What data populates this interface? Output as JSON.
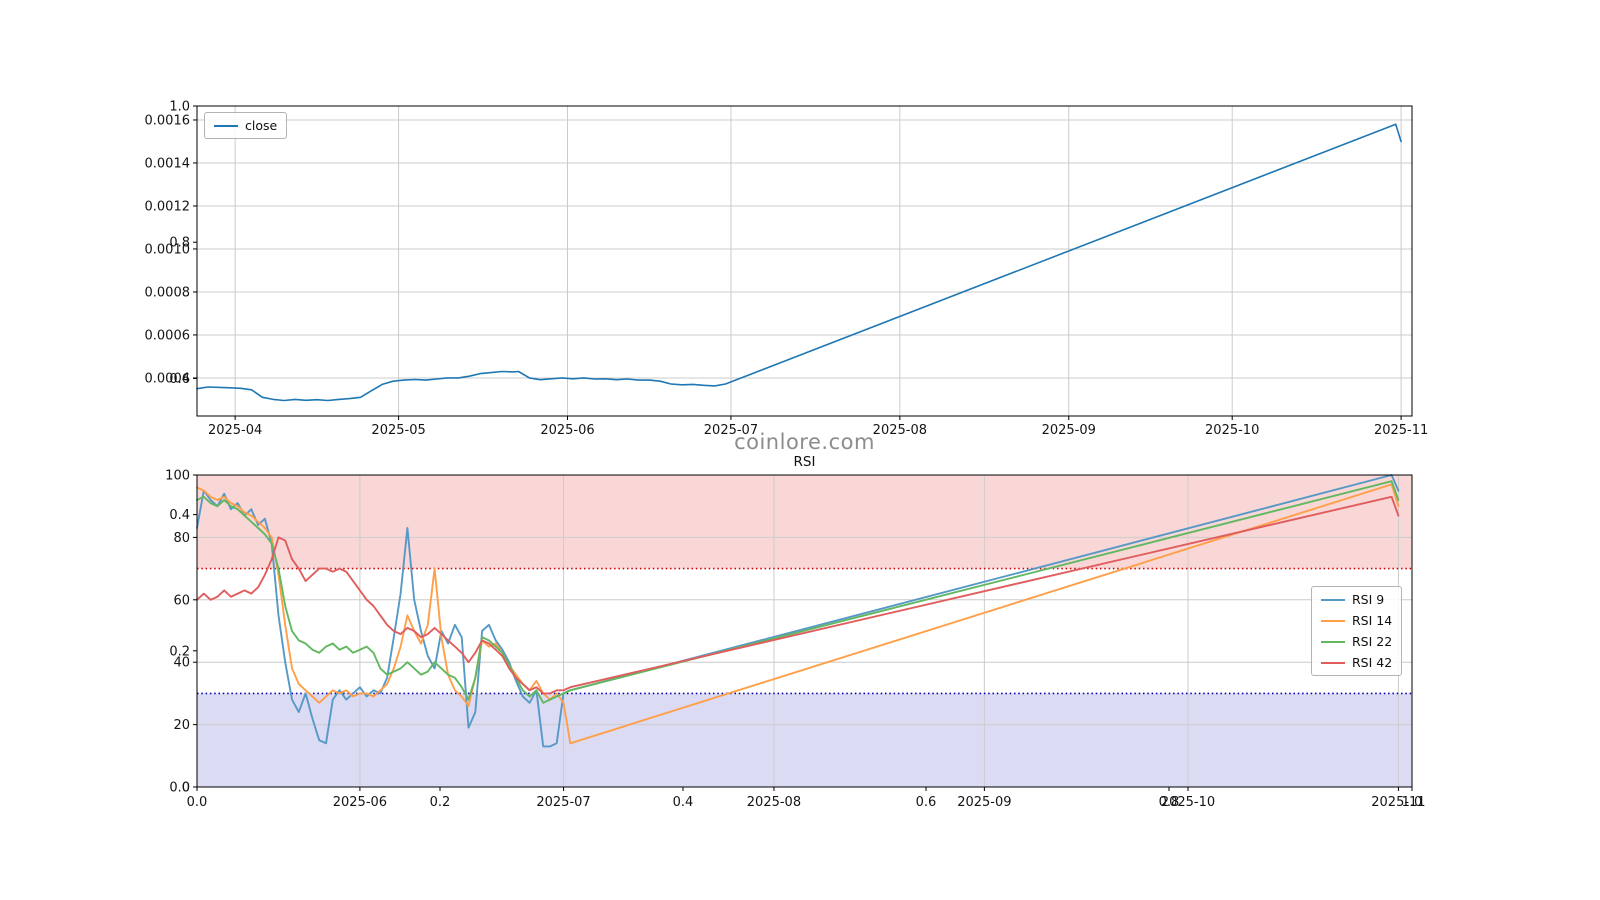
{
  "watermark": "coinlore.com",
  "phantom_axis": {
    "x_ticks": [
      "0.0",
      "0.2",
      "0.4",
      "0.6",
      "0.8",
      "1.0"
    ],
    "y_ticks": [
      "0.0",
      "0.2",
      "0.4",
      "0.6",
      "0.8",
      "1.0"
    ]
  },
  "chart_data": [
    {
      "type": "line",
      "name": "price-chart",
      "title": "",
      "xlabel": "",
      "ylabel": "",
      "grid": true,
      "legend_position": "top-left",
      "xlim": [
        "2025-03-25",
        "2025-11-03"
      ],
      "ylim": [
        0.000223,
        0.001665
      ],
      "x_ticks": [
        {
          "x": "2025-04-01",
          "label": "2025-04"
        },
        {
          "x": "2025-05-01",
          "label": "2025-05"
        },
        {
          "x": "2025-06-01",
          "label": "2025-06"
        },
        {
          "x": "2025-07-01",
          "label": "2025-07"
        },
        {
          "x": "2025-08-01",
          "label": "2025-08"
        },
        {
          "x": "2025-09-01",
          "label": "2025-09"
        },
        {
          "x": "2025-10-01",
          "label": "2025-10"
        },
        {
          "x": "2025-11-01",
          "label": "2025-11"
        }
      ],
      "y_ticks": [
        {
          "y": 0.0004,
          "label": "0.0004"
        },
        {
          "y": 0.0006,
          "label": "0.0006"
        },
        {
          "y": 0.0008,
          "label": "0.0008"
        },
        {
          "y": 0.001,
          "label": "0.0010"
        },
        {
          "y": 0.0012,
          "label": "0.0012"
        },
        {
          "y": 0.0014,
          "label": "0.0014"
        },
        {
          "y": 0.0016,
          "label": "0.0016"
        }
      ],
      "series": [
        {
          "name": "close",
          "color": "#1f77b4",
          "width": 1.6,
          "x": [
            "2025-03-25",
            "2025-03-27",
            "2025-03-30",
            "2025-04-02",
            "2025-04-04",
            "2025-04-06",
            "2025-04-08",
            "2025-04-10",
            "2025-04-12",
            "2025-04-14",
            "2025-04-16",
            "2025-04-18",
            "2025-04-20",
            "2025-04-22",
            "2025-04-24",
            "2025-04-26",
            "2025-04-28",
            "2025-04-30",
            "2025-05-02",
            "2025-05-04",
            "2025-05-06",
            "2025-05-08",
            "2025-05-10",
            "2025-05-12",
            "2025-05-14",
            "2025-05-16",
            "2025-05-18",
            "2025-05-20",
            "2025-05-22",
            "2025-05-23",
            "2025-05-25",
            "2025-05-27",
            "2025-05-29",
            "2025-05-31",
            "2025-06-02",
            "2025-06-04",
            "2025-06-06",
            "2025-06-08",
            "2025-06-10",
            "2025-06-12",
            "2025-06-14",
            "2025-06-16",
            "2025-06-18",
            "2025-06-20",
            "2025-06-22",
            "2025-06-24",
            "2025-06-26",
            "2025-06-28",
            "2025-06-30",
            "2025-10-31",
            "2025-11-01"
          ],
          "y": [
            0.00035,
            0.000358,
            0.000355,
            0.000352,
            0.000345,
            0.00031,
            0.0003,
            0.000295,
            0.0003,
            0.000296,
            0.000299,
            0.000295,
            0.0003,
            0.000304,
            0.00031,
            0.00034,
            0.00037,
            0.000385,
            0.00039,
            0.000393,
            0.00039,
            0.000395,
            0.0004,
            0.0004,
            0.000408,
            0.00042,
            0.000425,
            0.00043,
            0.000428,
            0.00043,
            0.0004,
            0.000392,
            0.000396,
            0.0004,
            0.000396,
            0.0004,
            0.000395,
            0.000396,
            0.000392,
            0.000395,
            0.00039,
            0.00039,
            0.000385,
            0.000372,
            0.000368,
            0.00037,
            0.000366,
            0.000363,
            0.000372,
            0.00158,
            0.0015
          ]
        }
      ]
    },
    {
      "type": "line",
      "name": "rsi-chart",
      "title": "RSI",
      "xlabel": "",
      "ylabel": "",
      "grid": true,
      "legend_position": "right",
      "xlim": [
        "2025-05-08",
        "2025-11-03"
      ],
      "ylim": [
        0,
        100
      ],
      "x_ticks": [
        {
          "x": "2025-06-01",
          "label": "2025-06"
        },
        {
          "x": "2025-07-01",
          "label": "2025-07"
        },
        {
          "x": "2025-08-01",
          "label": "2025-08"
        },
        {
          "x": "2025-09-01",
          "label": "2025-09"
        },
        {
          "x": "2025-10-01",
          "label": "2025-10"
        },
        {
          "x": "2025-11-01",
          "label": "2025-11"
        }
      ],
      "y_ticks": [
        {
          "y": 0,
          "label": "0"
        },
        {
          "y": 20,
          "label": "20"
        },
        {
          "y": 40,
          "label": "40"
        },
        {
          "y": 60,
          "label": "60"
        },
        {
          "y": 80,
          "label": "80"
        },
        {
          "y": 100,
          "label": "100"
        }
      ],
      "bands": [
        {
          "name": "overbought-band",
          "from": 70,
          "to": 100,
          "color": "#f9d7d7"
        },
        {
          "name": "oversold-band",
          "from": 0,
          "to": 30,
          "color": "#dcdbf4"
        }
      ],
      "hlines": [
        {
          "name": "overbought-line",
          "y": 70,
          "color": "#d40000"
        },
        {
          "name": "oversold-line",
          "y": 30,
          "color": "#0000b0"
        }
      ],
      "x_shared": [
        "2025-05-08",
        "2025-05-09",
        "2025-05-10",
        "2025-05-11",
        "2025-05-12",
        "2025-05-13",
        "2025-05-14",
        "2025-05-15",
        "2025-05-16",
        "2025-05-17",
        "2025-05-18",
        "2025-05-19",
        "2025-05-20",
        "2025-05-21",
        "2025-05-22",
        "2025-05-23",
        "2025-05-24",
        "2025-05-25",
        "2025-05-26",
        "2025-05-27",
        "2025-05-28",
        "2025-05-29",
        "2025-05-30",
        "2025-05-31",
        "2025-06-01",
        "2025-06-02",
        "2025-06-03",
        "2025-06-04",
        "2025-06-05",
        "2025-06-06",
        "2025-06-07",
        "2025-06-08",
        "2025-06-09",
        "2025-06-10",
        "2025-06-11",
        "2025-06-12",
        "2025-06-13",
        "2025-06-14",
        "2025-06-15",
        "2025-06-16",
        "2025-06-17",
        "2025-06-18",
        "2025-06-19",
        "2025-06-20",
        "2025-06-21",
        "2025-06-22",
        "2025-06-23",
        "2025-06-24",
        "2025-06-25",
        "2025-06-26",
        "2025-06-27",
        "2025-06-28",
        "2025-06-29",
        "2025-06-30",
        "2025-07-01",
        "2025-07-02",
        "2025-10-31",
        "2025-11-01"
      ],
      "series": [
        {
          "name": "RSI 9",
          "color": "#5799C6",
          "width": 1.9,
          "y": [
            83,
            95,
            92,
            90,
            94,
            89,
            91,
            87,
            89,
            84,
            86,
            78,
            55,
            40,
            28,
            24,
            30,
            22,
            15,
            14,
            28,
            31,
            28,
            30,
            32,
            29,
            31,
            30,
            35,
            48,
            62,
            83,
            60,
            50,
            42,
            38,
            50,
            46,
            52,
            48,
            19,
            24,
            50,
            52,
            47,
            44,
            40,
            34,
            29,
            27,
            31,
            13,
            13,
            14,
            30,
            31,
            100,
            95
          ]
        },
        {
          "name": "RSI 14",
          "color": "#FF9F4A",
          "width": 1.9,
          "y": [
            96,
            95,
            93,
            92,
            93,
            91,
            90,
            88,
            87,
            85,
            83,
            80,
            68,
            52,
            38,
            33,
            31,
            29,
            27,
            29,
            31,
            30,
            31,
            29,
            30,
            30,
            29,
            31,
            33,
            38,
            45,
            55,
            50,
            46,
            52,
            70,
            48,
            36,
            31,
            29,
            26,
            35,
            47,
            45,
            46,
            43,
            39,
            36,
            33,
            31,
            34,
            30,
            28,
            30,
            27,
            14,
            97,
            90
          ]
        },
        {
          "name": "RSI 22",
          "color": "#61B861",
          "width": 1.9,
          "y": [
            92,
            93,
            91,
            90,
            92,
            90,
            89,
            87,
            85,
            83,
            81,
            78,
            70,
            58,
            50,
            47,
            46,
            44,
            43,
            45,
            46,
            44,
            45,
            43,
            44,
            45,
            43,
            38,
            36,
            37,
            38,
            40,
            38,
            36,
            37,
            40,
            38,
            36,
            35,
            32,
            28,
            35,
            48,
            47,
            45,
            43,
            39,
            35,
            31,
            29,
            31,
            27,
            28,
            29,
            30,
            31,
            98,
            92
          ]
        },
        {
          "name": "RSI 42",
          "color": "#E05D5E",
          "width": 1.9,
          "y": [
            60,
            62,
            60,
            61,
            63,
            61,
            62,
            63,
            62,
            64,
            68,
            73,
            80,
            79,
            73,
            70,
            66,
            68,
            70,
            70,
            69,
            70,
            69,
            66,
            63,
            60,
            58,
            55,
            52,
            50,
            49,
            51,
            50,
            48,
            49,
            51,
            49,
            47,
            45,
            43,
            40,
            43,
            47,
            46,
            44,
            42,
            38,
            35,
            33,
            31,
            32,
            30,
            30,
            31,
            31,
            32,
            93,
            87
          ]
        }
      ]
    }
  ]
}
